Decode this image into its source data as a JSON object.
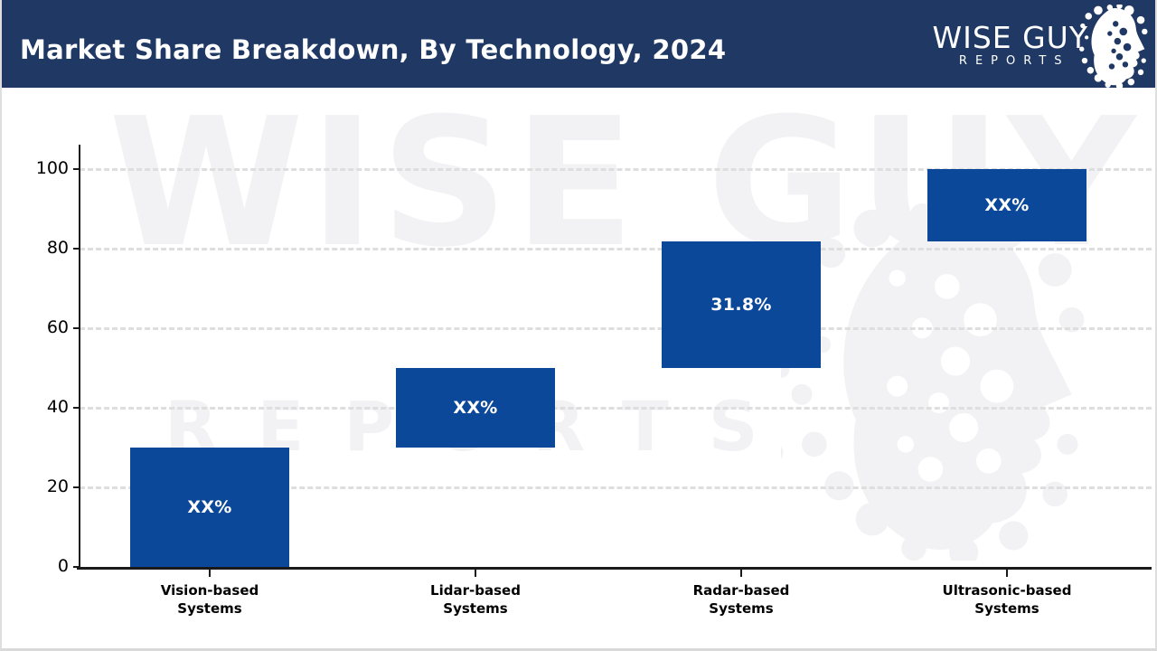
{
  "header": {
    "title": "Market Share Breakdown, By Technology, 2024",
    "bg_color": "#1f3864",
    "logo": {
      "line1": "WISE GUY",
      "line2": "REPORTS"
    }
  },
  "watermark": {
    "line1": "WISE GUY",
    "line2": "REPORTS"
  },
  "colors": {
    "header_bg": "#1f3864",
    "bar_blue": "#0c4899",
    "grid_gray": "#dedede",
    "watermark_gray": "#f2f2f4",
    "axis_black": "#1a1a1a",
    "text_white": "#ffffff"
  },
  "chart_data": {
    "type": "bar",
    "subtype": "waterfall-floating-segments",
    "title": "Market Share Breakdown, By Technology, 2024",
    "ylabel": "",
    "xlabel": "",
    "ylim": [
      0,
      100
    ],
    "yticks": [
      0,
      20,
      40,
      60,
      80,
      100
    ],
    "grid": "horizontal-dashed",
    "legend": "none",
    "bar_color": "#0c4899",
    "categories": [
      "Vision-based Systems",
      "Lidar-based Systems",
      "Radar-based Systems",
      "Ultrasonic-based Systems"
    ],
    "segments": [
      {
        "category_lines": [
          "Vision-based",
          "Systems"
        ],
        "start": 0,
        "end": 30,
        "value": 30,
        "label": "XX%"
      },
      {
        "category_lines": [
          "Lidar-based",
          "Systems"
        ],
        "start": 30,
        "end": 50,
        "value": 20,
        "label": "XX%"
      },
      {
        "category_lines": [
          "Radar-based",
          "Systems"
        ],
        "start": 50,
        "end": 81.8,
        "value": 31.8,
        "label": "31.8%"
      },
      {
        "category_lines": [
          "Ultrasonic-based",
          "Systems"
        ],
        "start": 81.8,
        "end": 100,
        "value": 18.2,
        "label": "XX%"
      }
    ]
  }
}
